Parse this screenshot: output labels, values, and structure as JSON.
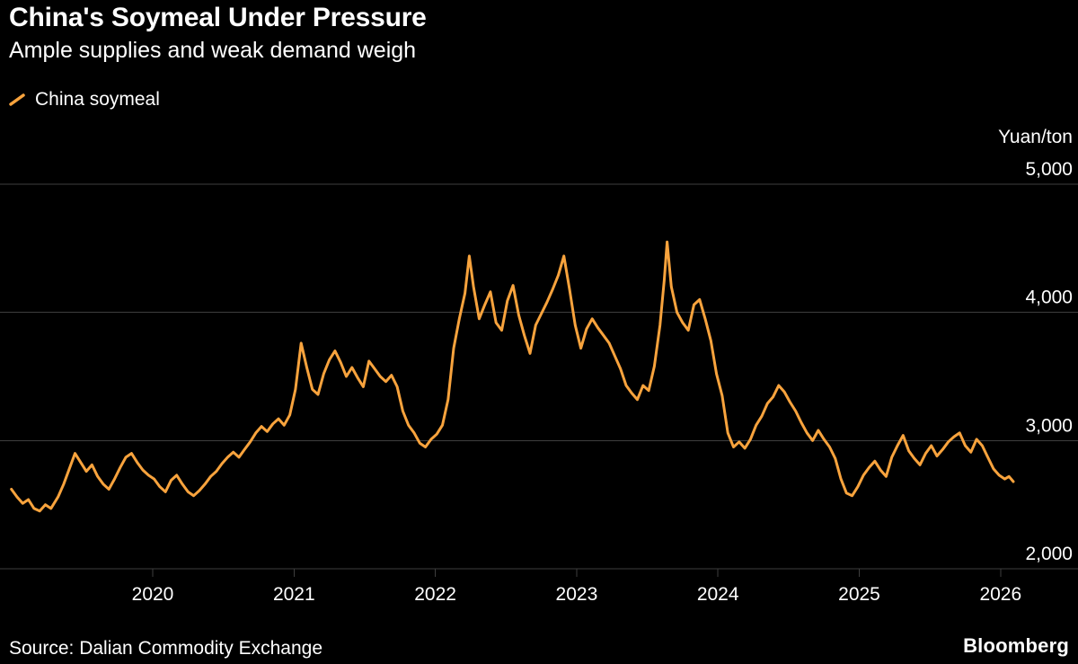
{
  "header": {
    "title": "China's Soymeal Under Pressure",
    "subtitle": "Ample supplies and weak demand weigh"
  },
  "legend": {
    "label": "China soymeal",
    "color": "#F8A33D"
  },
  "axis": {
    "unit_label": "Yuan/ton"
  },
  "footer": {
    "source": "Source: Dalian Commodity Exchange",
    "brand": "Bloomberg"
  },
  "colors": {
    "background": "#000000",
    "grid": "#3E3E3E",
    "text": "#FFFFFF",
    "accent": "#F8A33D"
  },
  "chart_data": {
    "type": "line",
    "title": "China's Soymeal Under Pressure",
    "subtitle": "Ample supplies and weak demand weigh",
    "xlabel": "",
    "ylabel": "Yuan/ton",
    "x_range": [
      2019.0,
      2026.1
    ],
    "ylim": [
      1900,
      5100
    ],
    "grid": "horizontal",
    "legend_position": "top-left",
    "y_ticks": [
      {
        "value": 5000,
        "label": "5,000"
      },
      {
        "value": 4000,
        "label": "4,000"
      },
      {
        "value": 3000,
        "label": "3,000"
      },
      {
        "value": 2000,
        "label": "2,000"
      }
    ],
    "x_ticks": [
      {
        "year": 2020,
        "label": "2020"
      },
      {
        "year": 2021,
        "label": "2021"
      },
      {
        "year": 2022,
        "label": "2022"
      },
      {
        "year": 2023,
        "label": "2023"
      },
      {
        "year": 2024,
        "label": "2024"
      },
      {
        "year": 2025,
        "label": "2025"
      },
      {
        "year": 2026,
        "label": "2026"
      }
    ],
    "series": [
      {
        "name": "China soymeal",
        "color": "#F8A33D",
        "points": [
          [
            2019.0,
            2620
          ],
          [
            2019.04,
            2560
          ],
          [
            2019.08,
            2510
          ],
          [
            2019.12,
            2540
          ],
          [
            2019.16,
            2470
          ],
          [
            2019.2,
            2450
          ],
          [
            2019.24,
            2500
          ],
          [
            2019.28,
            2470
          ],
          [
            2019.33,
            2560
          ],
          [
            2019.37,
            2660
          ],
          [
            2019.41,
            2780
          ],
          [
            2019.45,
            2900
          ],
          [
            2019.49,
            2830
          ],
          [
            2019.53,
            2760
          ],
          [
            2019.57,
            2810
          ],
          [
            2019.61,
            2720
          ],
          [
            2019.65,
            2660
          ],
          [
            2019.69,
            2620
          ],
          [
            2019.73,
            2700
          ],
          [
            2019.77,
            2790
          ],
          [
            2019.81,
            2870
          ],
          [
            2019.85,
            2900
          ],
          [
            2019.89,
            2830
          ],
          [
            2019.93,
            2770
          ],
          [
            2019.97,
            2730
          ],
          [
            2020.01,
            2700
          ],
          [
            2020.05,
            2640
          ],
          [
            2020.09,
            2600
          ],
          [
            2020.13,
            2690
          ],
          [
            2020.17,
            2730
          ],
          [
            2020.21,
            2660
          ],
          [
            2020.25,
            2600
          ],
          [
            2020.29,
            2570
          ],
          [
            2020.33,
            2610
          ],
          [
            2020.37,
            2660
          ],
          [
            2020.41,
            2720
          ],
          [
            2020.45,
            2760
          ],
          [
            2020.49,
            2820
          ],
          [
            2020.53,
            2870
          ],
          [
            2020.57,
            2910
          ],
          [
            2020.61,
            2870
          ],
          [
            2020.65,
            2930
          ],
          [
            2020.69,
            2990
          ],
          [
            2020.73,
            3060
          ],
          [
            2020.77,
            3110
          ],
          [
            2020.81,
            3070
          ],
          [
            2020.85,
            3130
          ],
          [
            2020.89,
            3170
          ],
          [
            2020.93,
            3120
          ],
          [
            2020.97,
            3200
          ],
          [
            2021.01,
            3400
          ],
          [
            2021.05,
            3760
          ],
          [
            2021.09,
            3570
          ],
          [
            2021.13,
            3400
          ],
          [
            2021.17,
            3360
          ],
          [
            2021.21,
            3520
          ],
          [
            2021.25,
            3630
          ],
          [
            2021.29,
            3700
          ],
          [
            2021.33,
            3610
          ],
          [
            2021.37,
            3500
          ],
          [
            2021.41,
            3570
          ],
          [
            2021.45,
            3490
          ],
          [
            2021.49,
            3420
          ],
          [
            2021.53,
            3620
          ],
          [
            2021.57,
            3560
          ],
          [
            2021.61,
            3500
          ],
          [
            2021.65,
            3460
          ],
          [
            2021.69,
            3510
          ],
          [
            2021.73,
            3420
          ],
          [
            2021.77,
            3230
          ],
          [
            2021.81,
            3120
          ],
          [
            2021.85,
            3060
          ],
          [
            2021.89,
            2980
          ],
          [
            2021.93,
            2950
          ],
          [
            2021.97,
            3010
          ],
          [
            2022.01,
            3050
          ],
          [
            2022.05,
            3120
          ],
          [
            2022.09,
            3320
          ],
          [
            2022.13,
            3720
          ],
          [
            2022.17,
            3950
          ],
          [
            2022.21,
            4150
          ],
          [
            2022.24,
            4440
          ],
          [
            2022.27,
            4200
          ],
          [
            2022.31,
            3950
          ],
          [
            2022.35,
            4060
          ],
          [
            2022.39,
            4160
          ],
          [
            2022.43,
            3920
          ],
          [
            2022.47,
            3860
          ],
          [
            2022.51,
            4090
          ],
          [
            2022.55,
            4210
          ],
          [
            2022.59,
            3980
          ],
          [
            2022.63,
            3820
          ],
          [
            2022.67,
            3680
          ],
          [
            2022.71,
            3900
          ],
          [
            2022.75,
            3990
          ],
          [
            2022.79,
            4080
          ],
          [
            2022.83,
            4180
          ],
          [
            2022.87,
            4290
          ],
          [
            2022.91,
            4440
          ],
          [
            2022.95,
            4180
          ],
          [
            2022.99,
            3900
          ],
          [
            2023.03,
            3720
          ],
          [
            2023.07,
            3870
          ],
          [
            2023.11,
            3950
          ],
          [
            2023.15,
            3880
          ],
          [
            2023.19,
            3820
          ],
          [
            2023.23,
            3760
          ],
          [
            2023.27,
            3660
          ],
          [
            2023.31,
            3560
          ],
          [
            2023.35,
            3430
          ],
          [
            2023.39,
            3370
          ],
          [
            2023.43,
            3320
          ],
          [
            2023.47,
            3430
          ],
          [
            2023.51,
            3390
          ],
          [
            2023.55,
            3580
          ],
          [
            2023.59,
            3900
          ],
          [
            2023.62,
            4250
          ],
          [
            2023.64,
            4550
          ],
          [
            2023.67,
            4200
          ],
          [
            2023.71,
            4000
          ],
          [
            2023.75,
            3920
          ],
          [
            2023.79,
            3860
          ],
          [
            2023.83,
            4060
          ],
          [
            2023.87,
            4100
          ],
          [
            2023.91,
            3950
          ],
          [
            2023.95,
            3780
          ],
          [
            2023.99,
            3520
          ],
          [
            2024.03,
            3350
          ],
          [
            2024.07,
            3060
          ],
          [
            2024.11,
            2950
          ],
          [
            2024.15,
            2990
          ],
          [
            2024.19,
            2940
          ],
          [
            2024.23,
            3010
          ],
          [
            2024.27,
            3120
          ],
          [
            2024.31,
            3190
          ],
          [
            2024.35,
            3290
          ],
          [
            2024.39,
            3340
          ],
          [
            2024.43,
            3430
          ],
          [
            2024.47,
            3380
          ],
          [
            2024.51,
            3300
          ],
          [
            2024.55,
            3230
          ],
          [
            2024.59,
            3140
          ],
          [
            2024.63,
            3060
          ],
          [
            2024.67,
            3000
          ],
          [
            2024.71,
            3080
          ],
          [
            2024.75,
            3010
          ],
          [
            2024.79,
            2950
          ],
          [
            2024.83,
            2860
          ],
          [
            2024.87,
            2700
          ],
          [
            2024.91,
            2590
          ],
          [
            2024.95,
            2570
          ],
          [
            2024.99,
            2640
          ],
          [
            2025.03,
            2730
          ],
          [
            2025.07,
            2790
          ],
          [
            2025.11,
            2840
          ],
          [
            2025.15,
            2770
          ],
          [
            2025.19,
            2720
          ],
          [
            2025.23,
            2870
          ],
          [
            2025.27,
            2960
          ],
          [
            2025.31,
            3040
          ],
          [
            2025.35,
            2920
          ],
          [
            2025.39,
            2860
          ],
          [
            2025.43,
            2810
          ],
          [
            2025.47,
            2900
          ],
          [
            2025.51,
            2960
          ],
          [
            2025.55,
            2880
          ],
          [
            2025.59,
            2930
          ],
          [
            2025.63,
            2990
          ],
          [
            2025.67,
            3030
          ],
          [
            2025.71,
            3060
          ],
          [
            2025.75,
            2960
          ],
          [
            2025.79,
            2910
          ],
          [
            2025.83,
            3010
          ],
          [
            2025.87,
            2960
          ],
          [
            2025.91,
            2870
          ],
          [
            2025.95,
            2780
          ],
          [
            2025.99,
            2730
          ],
          [
            2026.03,
            2700
          ],
          [
            2026.06,
            2720
          ],
          [
            2026.09,
            2680
          ]
        ]
      }
    ]
  }
}
